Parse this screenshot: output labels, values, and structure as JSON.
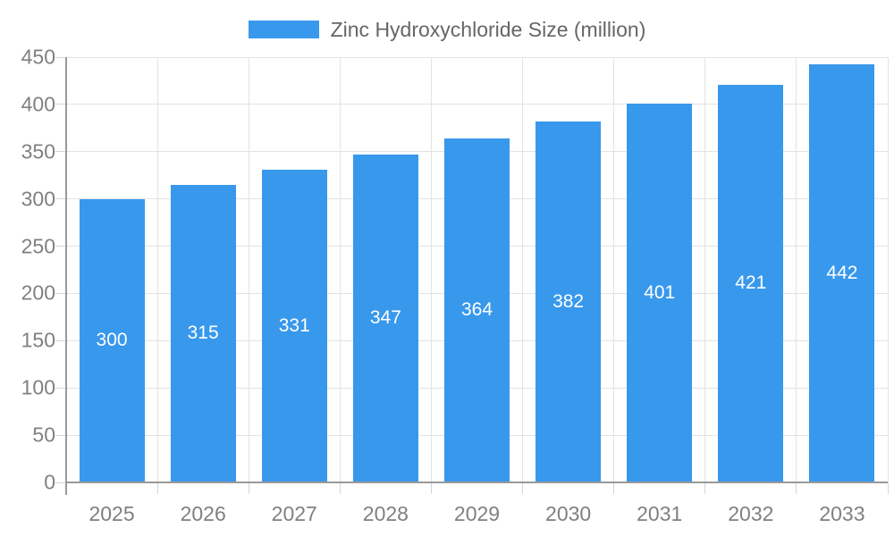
{
  "legend": {
    "label": "Zinc Hydroxychloride Size (million)"
  },
  "chart_data": {
    "type": "bar",
    "title": "Zinc Hydroxychloride Size (million)",
    "categories": [
      "2025",
      "2026",
      "2027",
      "2028",
      "2029",
      "2030",
      "2031",
      "2032",
      "2033"
    ],
    "values": [
      300,
      315,
      331,
      347,
      364,
      382,
      401,
      421,
      442
    ],
    "xlabel": "",
    "ylabel": "",
    "ylim": [
      0,
      450
    ],
    "ytick_step": 50,
    "ytick_labels": [
      "0",
      "50",
      "100",
      "150",
      "200",
      "250",
      "300",
      "350",
      "400",
      "450"
    ],
    "grid": true,
    "legend_position": "top-center",
    "bar_label_position": "center-inside",
    "colors": {
      "bar": "#3898ec",
      "bar_label": "#ffffff",
      "axis_line": "#999999",
      "gridline": "#e3e3e3",
      "tick": "#d6d6d6",
      "axis_label": "#808080",
      "legend_text": "#666666",
      "background": "#ffffff"
    }
  }
}
